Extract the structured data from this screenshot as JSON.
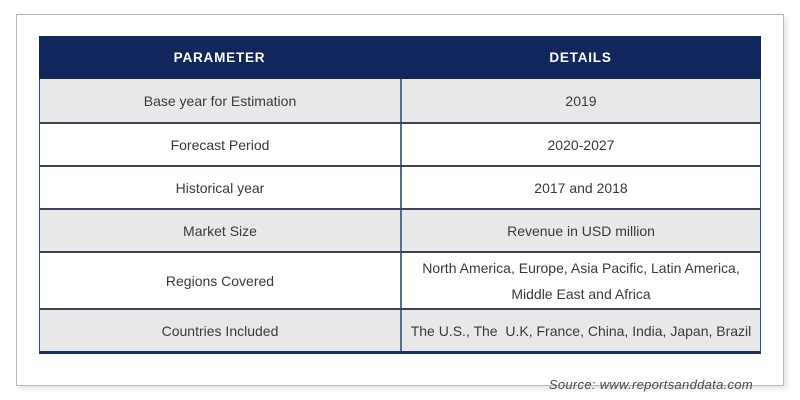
{
  "table": {
    "columns": [
      {
        "label": "PARAMETER"
      },
      {
        "label": "DETAILS"
      }
    ],
    "rows": [
      {
        "parameter": "Base year for Estimation",
        "details": "2019"
      },
      {
        "parameter": "Forecast Period",
        "details": "2020-2027"
      },
      {
        "parameter": "Historical year",
        "details": "2017 and 2018"
      },
      {
        "parameter": "Market Size",
        "details": "Revenue in USD million"
      },
      {
        "parameter": "Regions Covered",
        "details": "North America, Europe, Asia Pacific, Latin America, Middle East and Africa"
      },
      {
        "parameter": "Countries Included",
        "details": "The U.S., The  U.K, France, China, India, Japan, Brazil"
      }
    ]
  },
  "footer": {
    "source": "Source: www.reportsanddata.com"
  },
  "colors": {
    "header_bg": "#12265e",
    "header_text": "#ffffff",
    "row_alt_bg": "#e8e8e8",
    "row_bg": "#ffffff",
    "row_divider": "#3c4456",
    "column_divider": "#5c6c90",
    "table_side_border": "#2e4a86",
    "table_bottom_border": "#1d3160",
    "body_text": "#3a3a3a",
    "source_text": "#4c4c4c",
    "card_border": "#b7b7b7"
  },
  "chart_data": {
    "type": "table",
    "title": "Report scope summary table",
    "columns": [
      "PARAMETER",
      "DETAILS"
    ],
    "rows": [
      [
        "Base year for Estimation",
        "2019"
      ],
      [
        "Forecast Period",
        "2020-2027"
      ],
      [
        "Historical year",
        "2017 and 2018"
      ],
      [
        "Market Size",
        "Revenue in USD million"
      ],
      [
        "Regions Covered",
        "North America, Europe, Asia Pacific, Latin America, Middle East and Africa"
      ],
      [
        "Countries Included",
        "The U.S., The  U.K, France, China, India, Japan, Brazil"
      ]
    ],
    "annotations": [
      "Source: www.reportsanddata.com"
    ],
    "layout_hints": {
      "header_style": "navy-banner",
      "zebra_rows": [
        0,
        3,
        5
      ]
    }
  }
}
